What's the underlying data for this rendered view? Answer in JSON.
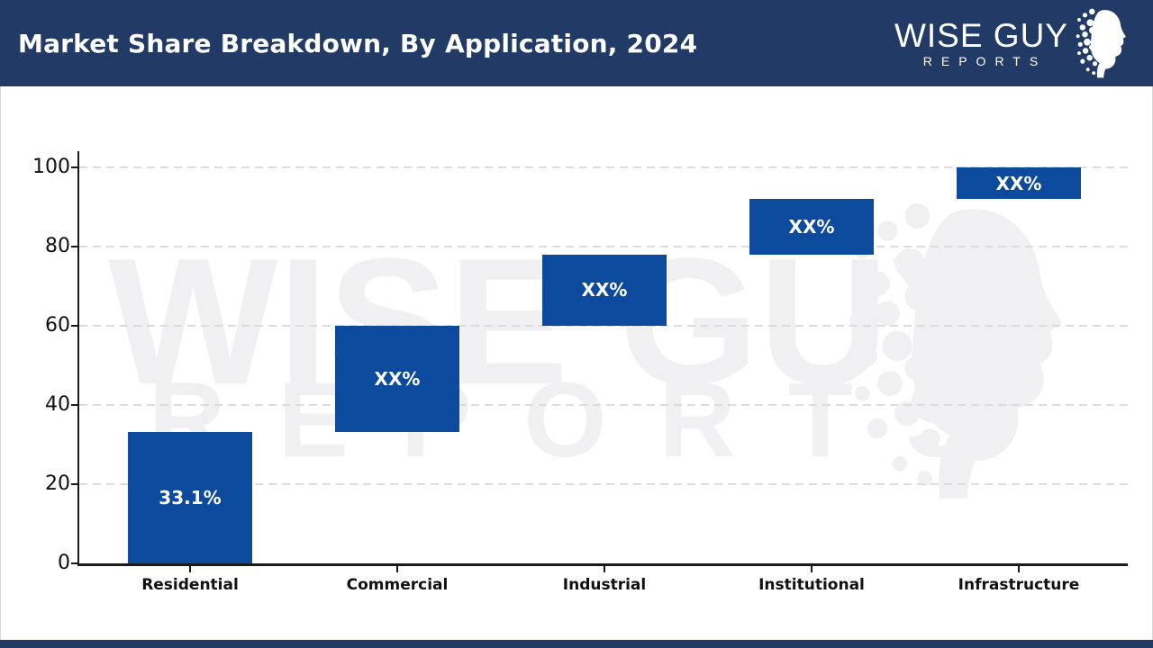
{
  "header": {
    "title": "Market Share Breakdown, By Application, 2024",
    "logo": {
      "line1": "WISE GUY",
      "line2": "REPORTS"
    }
  },
  "watermark": {
    "line1": "WISE GUY",
    "line2": "REPORTS"
  },
  "colors": {
    "header_bg": "#223a66",
    "footer_bg": "#223a66",
    "bar_fill": "#0c4a9d",
    "bar_label": "#ffffff",
    "gridline": "#dcdcdc",
    "axis": "#1a1a1a",
    "watermark": "#f0f0f2"
  },
  "chart_data": {
    "type": "bar",
    "subtype": "floating-waterfall",
    "title": "Market Share Breakdown, By Application, 2024",
    "categories": [
      "Residential",
      "Commercial",
      "Industrial",
      "Institutional",
      "Infrastructure"
    ],
    "series": [
      {
        "name": "Market Share",
        "segments": [
          {
            "category": "Residential",
            "start": 0,
            "end": 33.1,
            "label": "33.1%"
          },
          {
            "category": "Commercial",
            "start": 33.1,
            "end": 60,
            "label": "XX%"
          },
          {
            "category": "Industrial",
            "start": 60,
            "end": 78,
            "label": "XX%"
          },
          {
            "category": "Institutional",
            "start": 78,
            "end": 92,
            "label": "XX%"
          },
          {
            "category": "Infrastructure",
            "start": 92,
            "end": 100,
            "label": "XX%"
          }
        ]
      }
    ],
    "xlabel": "",
    "ylabel": "",
    "ylim": [
      0,
      100
    ],
    "yticks": [
      0,
      20,
      40,
      60,
      80,
      100
    ],
    "grid": "horizontal-dashed",
    "legend": "none"
  }
}
